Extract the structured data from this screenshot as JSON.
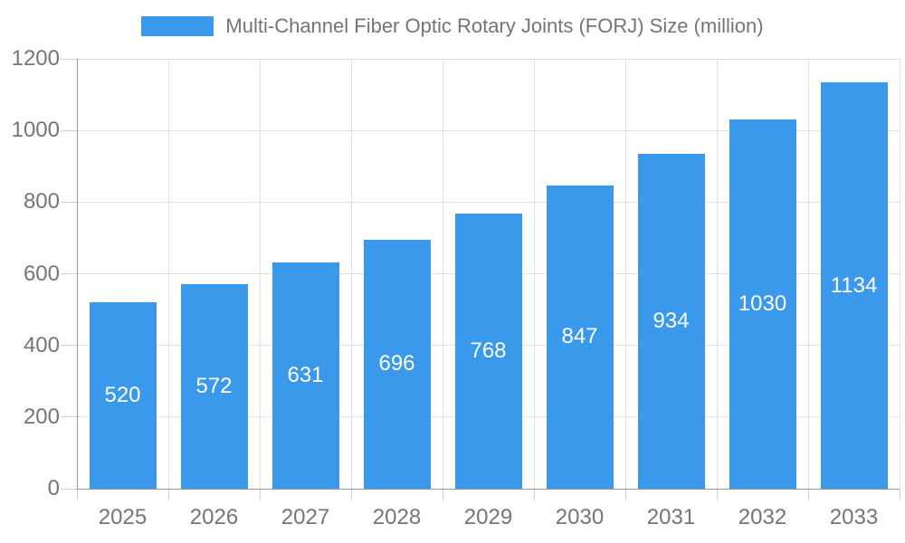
{
  "legend": {
    "label": "Multi-Channel Fiber Optic Rotary Joints (FORJ) Size (million)"
  },
  "chart_data": {
    "type": "bar",
    "title": "Multi-Channel Fiber Optic Rotary Joints (FORJ) Size (million)",
    "categories": [
      "2025",
      "2026",
      "2027",
      "2028",
      "2029",
      "2030",
      "2031",
      "2032",
      "2033"
    ],
    "values": [
      520,
      572,
      631,
      696,
      768,
      847,
      934,
      1030,
      1134
    ],
    "xlabel": "",
    "ylabel": "",
    "ylim": [
      0,
      1200
    ],
    "yticks": [
      0,
      200,
      400,
      600,
      800,
      1000,
      1200
    ],
    "grid": true,
    "legend_position": "top",
    "colors": {
      "bar": "#3B99EC",
      "value_label": "#ffffff",
      "axis_text": "#757575",
      "grid_line": "#e2e2e2",
      "tick_line": "#d0d0d0",
      "axis_line": "#999999",
      "background": "#ffffff"
    }
  }
}
